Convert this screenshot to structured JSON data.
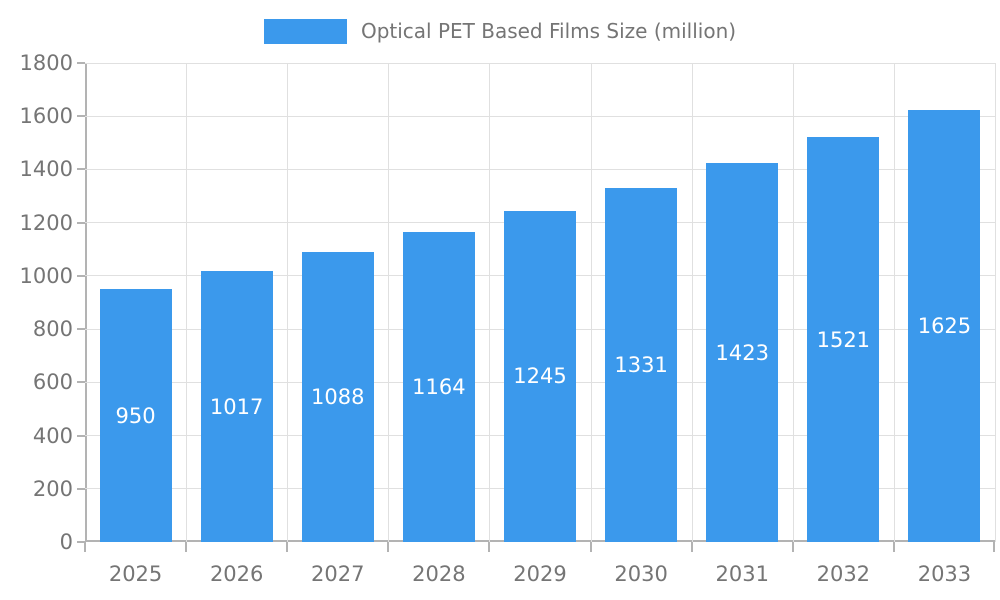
{
  "legend": {
    "label": "Optical PET Based Films Size (million)"
  },
  "chart_data": {
    "type": "bar",
    "title": "Optical PET Based Films Size (million)",
    "categories": [
      "2025",
      "2026",
      "2027",
      "2028",
      "2029",
      "2030",
      "2031",
      "2032",
      "2033"
    ],
    "values": [
      950,
      1017,
      1088,
      1164,
      1245,
      1331,
      1423,
      1521,
      1625
    ],
    "series": [
      {
        "name": "Optical PET Based Films Size (million)",
        "values": [
          950,
          1017,
          1088,
          1164,
          1245,
          1331,
          1423,
          1521,
          1625
        ]
      }
    ],
    "xlabel": "",
    "ylabel": "",
    "ylim": [
      0,
      1800
    ],
    "yticks": [
      0,
      200,
      400,
      600,
      800,
      1000,
      1200,
      1400,
      1600,
      1800
    ],
    "grid": true,
    "legend_position": "top",
    "bar_value_labels_inside": true
  },
  "colors": {
    "bar": "#3B99EC",
    "bar_label": "#FFFFFF",
    "tick_text": "#757575",
    "grid_line": "#E0E0E0",
    "axis_line": "#B3B3B3",
    "background": "#FFFFFF"
  }
}
